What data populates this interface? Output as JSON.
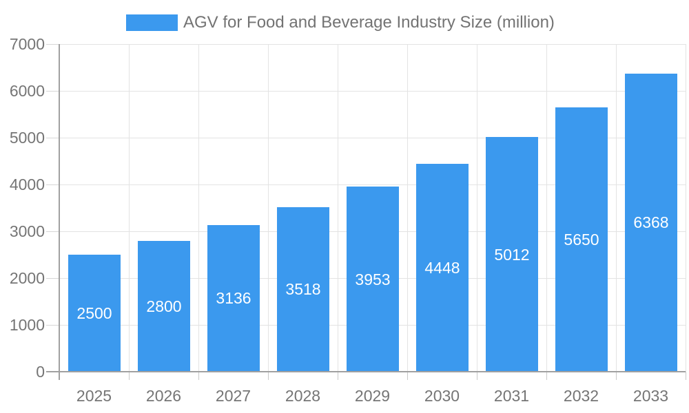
{
  "legend": {
    "label": "AGV for Food and Beverage Industry Size (million)",
    "swatch_color": "#3B99EE"
  },
  "chart_data": {
    "type": "bar",
    "title": "AGV for Food and Beverage Industry Size (million)",
    "categories": [
      "2025",
      "2026",
      "2027",
      "2028",
      "2029",
      "2030",
      "2031",
      "2032",
      "2033"
    ],
    "values": [
      2500,
      2800,
      3136,
      3518,
      3953,
      4448,
      5012,
      5650,
      6368
    ],
    "xlabel": "",
    "ylabel": "",
    "ylim": [
      0,
      7000
    ],
    "yticks": [
      0,
      1000,
      2000,
      3000,
      4000,
      5000,
      6000,
      7000
    ],
    "grid": true,
    "legend_position": "top",
    "bar_color": "#3B99EE",
    "data_label_color": "#FFFFFF"
  },
  "colors": {
    "bar": "#3B99EE",
    "grid_line": "#E3E3E3",
    "axis_line": "#A0A0A0",
    "y_tick_mark": "#D6D6D6",
    "x_tick_mark": "#C9C9C9",
    "tick_text": "#757575",
    "legend_text": "#737373",
    "background": "#FFFFFF"
  }
}
